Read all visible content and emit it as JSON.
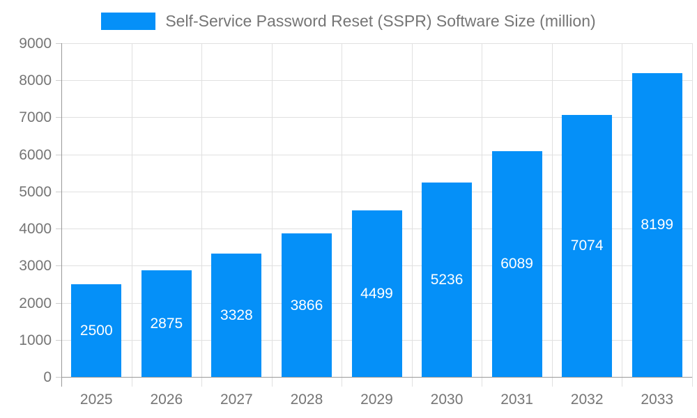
{
  "legend": {
    "label": "Self-Service Password Reset (SSPR) Software Size (million)"
  },
  "colors": {
    "bar": "#0590f8",
    "grid": "#e0e0e0",
    "axis": "#999999",
    "tick": "#cccccc",
    "text": "#757575",
    "value_label": "#ffffff",
    "background": "#ffffff"
  },
  "chart_data": {
    "type": "bar",
    "title": "Self-Service Password Reset (SSPR) Software Size (million)",
    "series_name": "Self-Service Password Reset (SSPR) Software Size (million)",
    "categories": [
      "2025",
      "2026",
      "2027",
      "2028",
      "2029",
      "2030",
      "2031",
      "2032",
      "2033"
    ],
    "values": [
      2500,
      2875,
      3328,
      3866,
      4499,
      5236,
      6089,
      7074,
      8199
    ],
    "xlabel": "",
    "ylabel": "",
    "ylim": [
      0,
      9000
    ],
    "ytick_step": 1000,
    "y_ticks": [
      0,
      1000,
      2000,
      3000,
      4000,
      5000,
      6000,
      7000,
      8000,
      9000
    ],
    "grid": true,
    "legend_position": "top",
    "value_labels": "inside-center"
  }
}
